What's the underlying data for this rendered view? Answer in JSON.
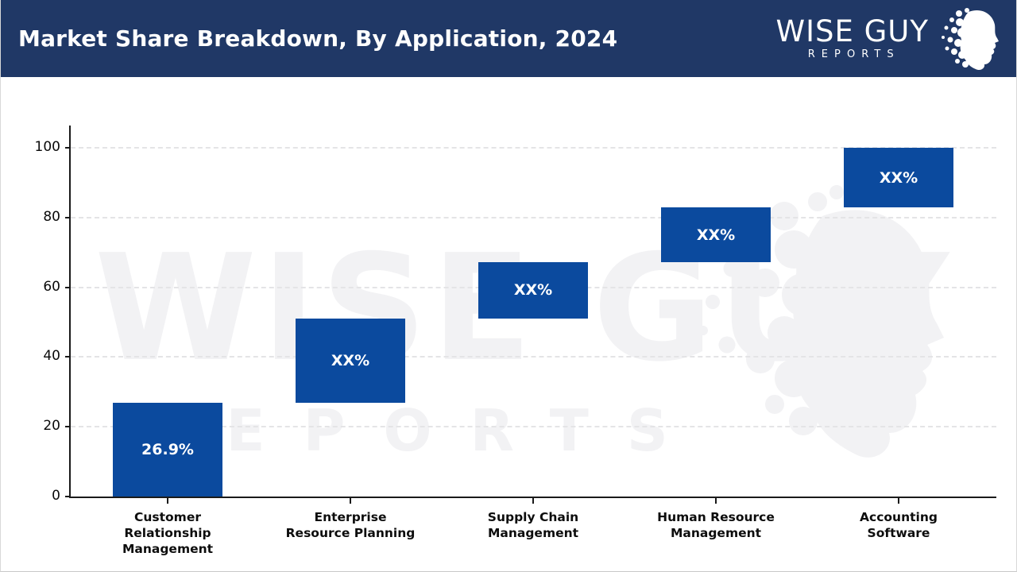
{
  "header": {
    "title": "Market Share Breakdown, By Application, 2024",
    "logo": {
      "line1": "WISE GUY",
      "line2": "REPORTS"
    }
  },
  "watermark": {
    "line1": "WISE GUY",
    "line2": "REPORTS"
  },
  "colors": {
    "header_bg": "#203866",
    "bar": "#0b4a9e",
    "grid": "#e4e4e6",
    "axis": "#1a1a1a",
    "watermark": "#f2f2f4",
    "bar_label": "#ffffff"
  },
  "chart_data": {
    "type": "bar",
    "subtype": "floating-segment-waterfall",
    "title": "Market Share Breakdown, By Application, 2024",
    "categories": [
      "Customer\nRelationship\nManagement",
      "Enterprise\nResource Planning",
      "Supply Chain\nManagement",
      "Human Resource\nManagement",
      "Accounting\nSoftware"
    ],
    "segments": [
      {
        "start": 0,
        "end": 26.9,
        "label": "26.9%"
      },
      {
        "start": 26.9,
        "end": 51.1,
        "label": "XX%"
      },
      {
        "start": 51.1,
        "end": 67.2,
        "label": "XX%"
      },
      {
        "start": 67.2,
        "end": 82.9,
        "label": "XX%"
      },
      {
        "start": 82.9,
        "end": 100,
        "label": "XX%"
      }
    ],
    "xlabel": "",
    "ylabel": "",
    "ylim": [
      0,
      100
    ],
    "yticks": [
      0,
      20,
      40,
      60,
      80,
      100
    ],
    "grid": "horizontal-dashed",
    "legend": "none"
  }
}
